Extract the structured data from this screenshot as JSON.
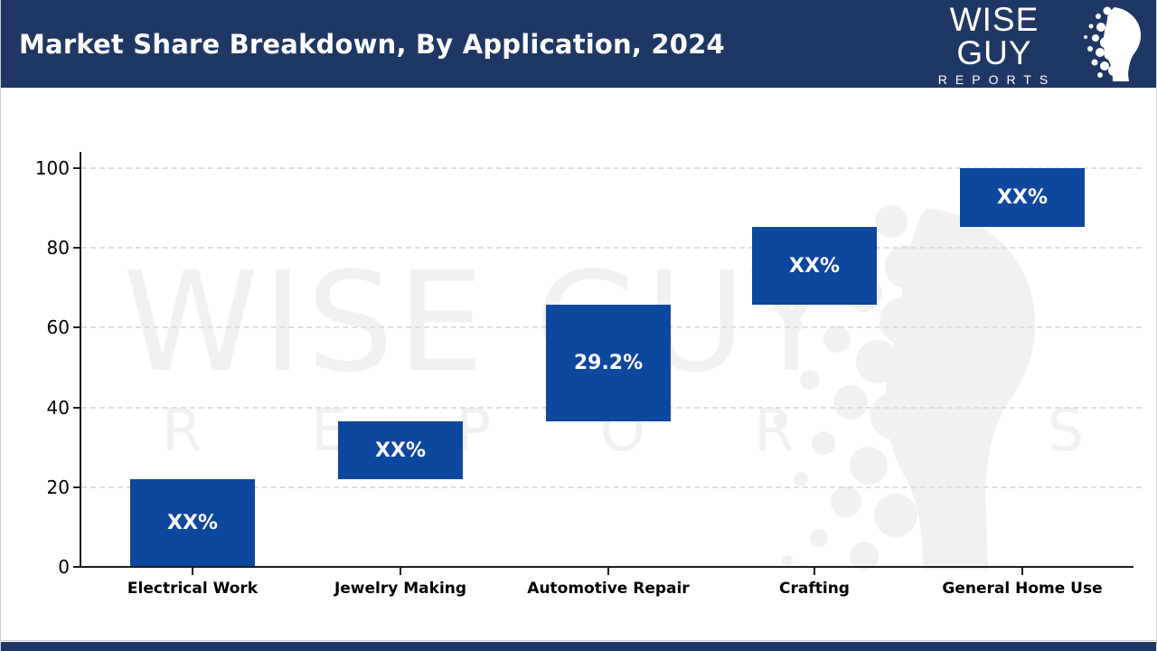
{
  "header": {
    "title": "Market Share Breakdown, By Application, 2024",
    "bg_color": "#1f3764",
    "logo": {
      "line1": "WISE GUY",
      "line2": "REPORTS"
    }
  },
  "watermark": {
    "line1": "WISE GUY",
    "line2": "REPORTS"
  },
  "chart_data": {
    "type": "bar",
    "subtype": "floating-segment-waterfall",
    "title": "Market Share Breakdown, By Application, 2024",
    "categories": [
      "Electrical Work",
      "Jewelry Making",
      "Automotive Repair",
      "Crafting",
      "General Home Use"
    ],
    "segments": [
      {
        "category": "Electrical Work",
        "start": 0.0,
        "end": 22.0,
        "value": 22.0,
        "label": "XX%"
      },
      {
        "category": "Jewelry Making",
        "start": 22.0,
        "end": 36.5,
        "value": 14.5,
        "label": "XX%"
      },
      {
        "category": "Automotive Repair",
        "start": 36.5,
        "end": 65.7,
        "value": 29.2,
        "label": "29.2%"
      },
      {
        "category": "Crafting",
        "start": 65.7,
        "end": 85.2,
        "value": 19.5,
        "label": "XX%"
      },
      {
        "category": "General Home Use",
        "start": 85.2,
        "end": 100.0,
        "value": 14.8,
        "label": "XX%"
      }
    ],
    "ylim": [
      0,
      100
    ],
    "yticks": [
      0,
      20,
      40,
      60,
      80,
      100
    ],
    "xlabel": "",
    "ylabel": "",
    "grid": "horizontal-dashed",
    "legend": "none",
    "bar_color": "#0d479e",
    "bar_label_color": "#ffffff"
  }
}
